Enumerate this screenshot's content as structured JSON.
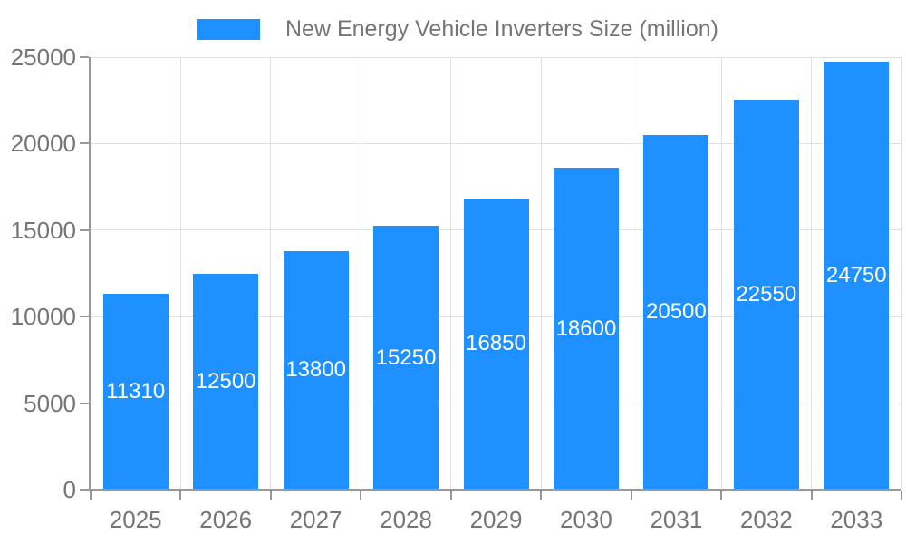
{
  "chart_data": {
    "type": "bar",
    "title": "New Energy Vehicle Inverters Size (million)",
    "legend_entries": [
      "New Energy Vehicle Inverters Size (million)"
    ],
    "legend_position": "top-center",
    "categories": [
      "2025",
      "2026",
      "2027",
      "2028",
      "2029",
      "2030",
      "2031",
      "2032",
      "2033"
    ],
    "series": [
      {
        "name": "New Energy Vehicle Inverters Size (million)",
        "values": [
          11310,
          12500,
          13800,
          15250,
          16850,
          18600,
          20500,
          22550,
          24750
        ]
      }
    ],
    "value_labels": [
      "11310",
      "12500",
      "13800",
      "15250",
      "16850",
      "18600",
      "20500",
      "22550",
      "24750"
    ],
    "value_labels_inside_bars": true,
    "xlabel": "",
    "ylabel": "",
    "ylim": [
      0,
      25000
    ],
    "yticks": [
      "0",
      "5000",
      "10000",
      "15000",
      "20000",
      "25000"
    ],
    "grid": true
  },
  "colors": {
    "bar": "#1E90FF",
    "grid_line": "#E0E0E0",
    "axis_line": "#999999",
    "axis_label": "#757575",
    "bar_value_label": "#FFFFFF",
    "legend_text": "#757575",
    "background": "#FFFFFF"
  }
}
